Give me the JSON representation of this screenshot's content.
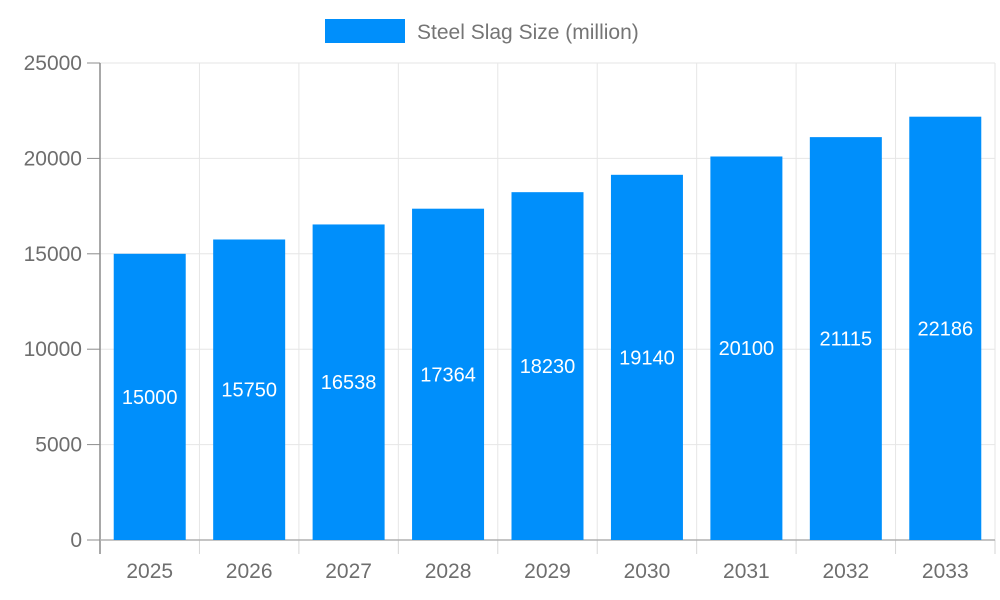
{
  "chart_data": {
    "type": "bar",
    "categories": [
      "2025",
      "2026",
      "2027",
      "2028",
      "2029",
      "2030",
      "2031",
      "2032",
      "2033"
    ],
    "series": [
      {
        "name": "Steel Slag Size (million)",
        "values": [
          15000,
          15750,
          16538,
          17364,
          18230,
          19140,
          20100,
          21115,
          22186
        ]
      }
    ],
    "title": "",
    "xlabel": "",
    "ylabel": "",
    "ylim": [
      0,
      25000
    ],
    "yticks": [
      0,
      5000,
      10000,
      15000,
      20000,
      25000
    ],
    "grid": true,
    "legend_position": "top-center",
    "bar_labels_visible": true,
    "bar_label_position": "center"
  },
  "legend": {
    "label": "Steel Slag Size (million)"
  },
  "colors": {
    "bar": "#008FFB",
    "bar_label_text": "#ffffff",
    "axis_text": "#6e6e6e",
    "legend_text": "#757575",
    "gridline": "#e6e6e6",
    "axis_line": "#8c8c8c",
    "baseline": "#b0b0b0",
    "x_tick": "#d6d6d6",
    "background": "#ffffff"
  }
}
